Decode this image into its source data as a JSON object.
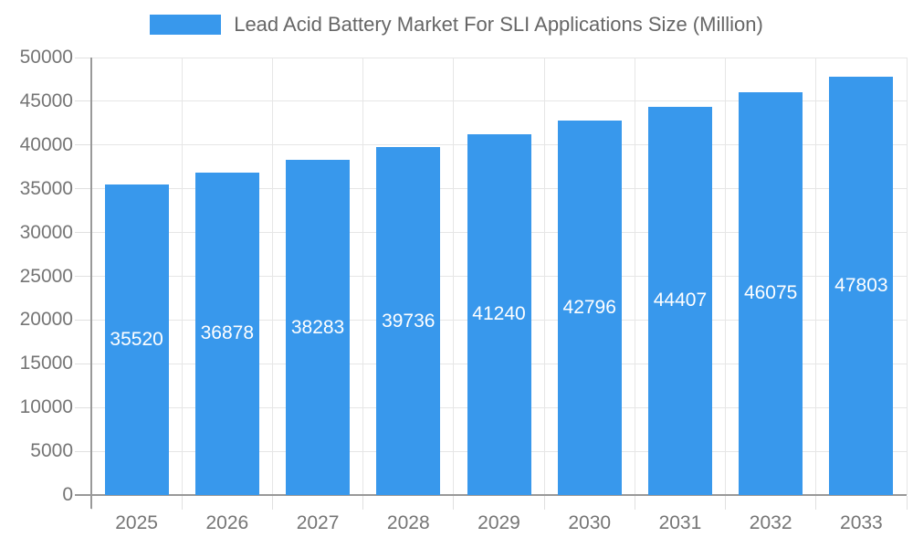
{
  "legend": {
    "series_label": "Lead Acid Battery Market For SLI Applications Size (Million)"
  },
  "chart_data": {
    "type": "bar",
    "title": "Lead Acid Battery Market For SLI Applications Size (Million)",
    "categories": [
      "2025",
      "2026",
      "2027",
      "2028",
      "2029",
      "2030",
      "2031",
      "2032",
      "2033"
    ],
    "series": [
      {
        "name": "Lead Acid Battery Market For SLI Applications Size (Million)",
        "values": [
          35520,
          36878,
          38283,
          39736,
          41240,
          42796,
          44407,
          46075,
          47803
        ]
      }
    ],
    "value_labels": [
      35520,
      36878,
      38283,
      39736,
      41240,
      42796,
      44407,
      46075,
      47803
    ],
    "xlabel": "",
    "ylabel": "",
    "ylim": [
      0,
      50000
    ],
    "ytick_step": 5000,
    "ytick_labels": [
      "0",
      "5000",
      "10000",
      "15000",
      "20000",
      "25000",
      "30000",
      "35000",
      "40000",
      "45000",
      "50000"
    ],
    "grid": "on",
    "legend_position": "top",
    "colors": {
      "bar": "#3898EC",
      "value_label_text": "#FFFFFF",
      "gridline": "#E6E6E6",
      "axis_line": "#999999",
      "tick_mark": "#E0E0E0",
      "tick_label_text": "#757575",
      "legend_text": "#666666",
      "background": "#FFFFFF"
    }
  }
}
